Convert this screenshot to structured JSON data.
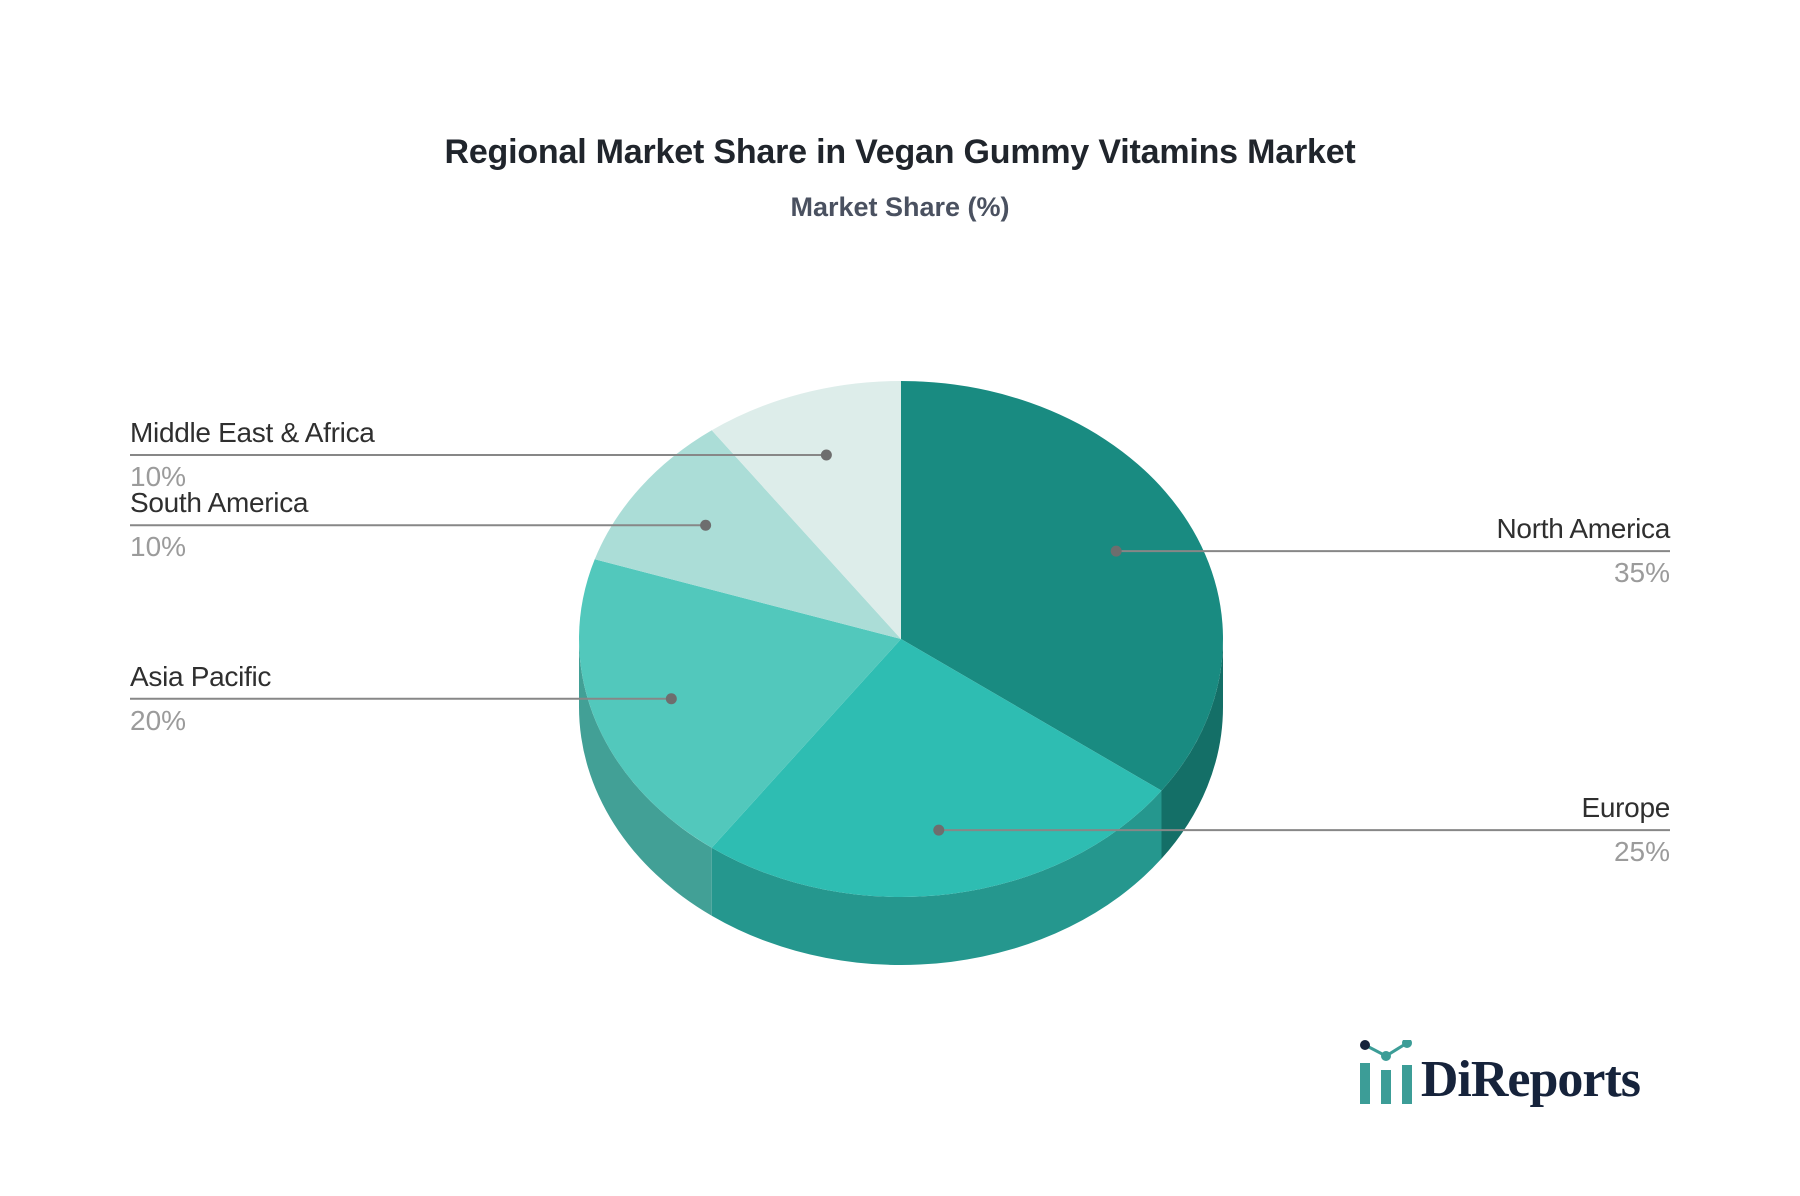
{
  "chart_data": {
    "type": "pie",
    "title": "Regional Market Share in Vegan Gummy Vitamins Market",
    "subtitle": "Market Share (%)",
    "unit": "%",
    "start_angle_deg": 0,
    "direction": "clockwise",
    "effect_3d": true,
    "legend": "none",
    "label_style": "name above leader line, percent value below",
    "series": [
      {
        "name": "North America",
        "value": 35,
        "color": "#198B81"
      },
      {
        "name": "Europe",
        "value": 25,
        "color": "#2EBDB2"
      },
      {
        "name": "Asia Pacific",
        "value": 20,
        "color": "#52C8BC"
      },
      {
        "name": "South America",
        "value": 10,
        "color": "#ABDDD7"
      },
      {
        "name": "Middle East & Africa",
        "value": 10,
        "color": "#DDEDEA"
      }
    ]
  },
  "colors": {
    "background": "#FFFFFF",
    "title_text": "#20252C",
    "subtitle_text": "#4A5160",
    "label_text": "#2F2F2F",
    "percent_text": "#9B9B9B",
    "leader_line": "#878787",
    "leader_dot": "#6E6E6E",
    "side_shade_factor": 0.8
  },
  "logo": {
    "text": "DiReports",
    "icon": "bar-line-chart-icon",
    "accent_color": "#3C9D97",
    "navy_color": "#16233B"
  }
}
